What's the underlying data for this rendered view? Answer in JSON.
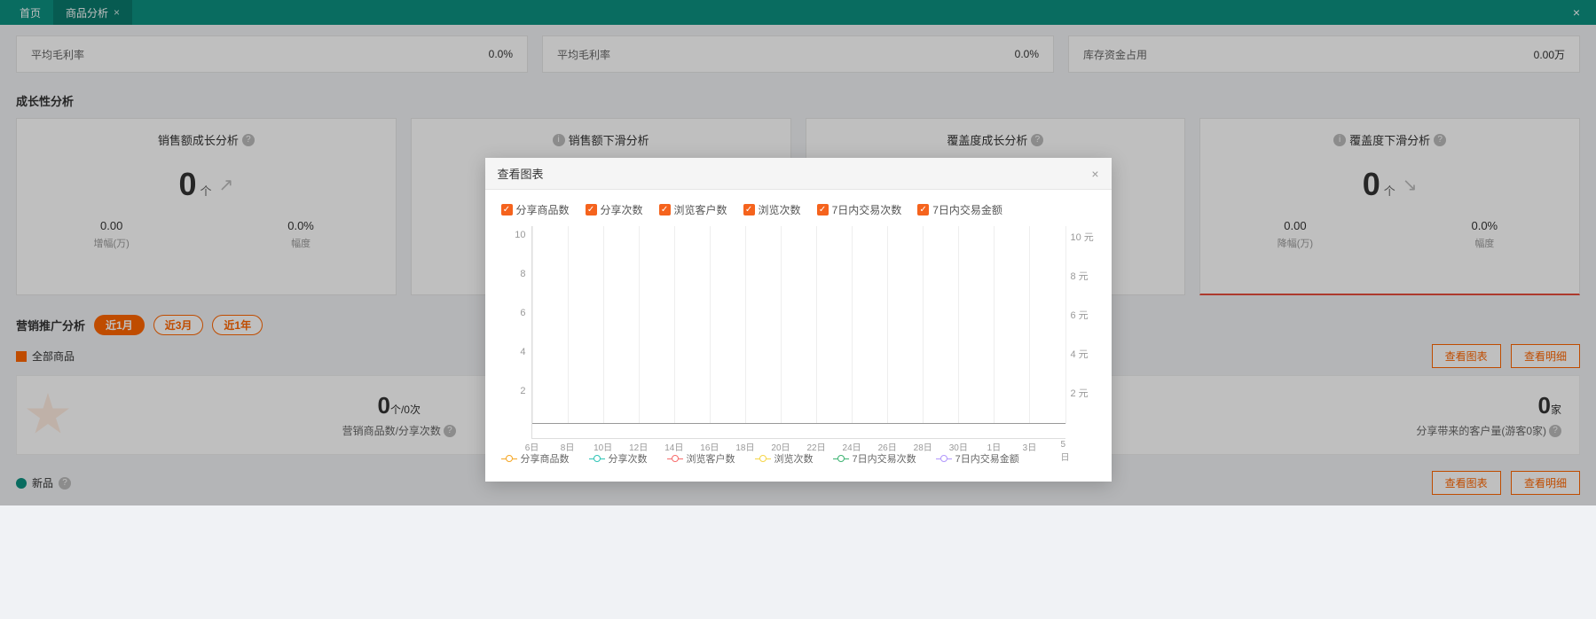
{
  "tabs": {
    "home": "首页",
    "active": "商品分析"
  },
  "top_metrics": [
    {
      "label": "平均毛利率",
      "value": "0.0%"
    },
    {
      "label": "平均毛利率",
      "value": "0.0%"
    },
    {
      "label": "库存资金占用",
      "value": "0.00万"
    }
  ],
  "growth": {
    "section": "成长性分析",
    "cards": [
      {
        "title": "销售额成长分析",
        "num": "0",
        "unit": "个",
        "trend": "up",
        "subs": [
          {
            "v": "0.00",
            "l": "增幅(万)"
          },
          {
            "v": "0.0%",
            "l": "幅度"
          }
        ]
      },
      {
        "title": "销售额下滑分析",
        "num": "",
        "unit": "",
        "trend": "",
        "subs": []
      },
      {
        "title": "覆盖度成长分析",
        "num": "",
        "unit": "",
        "trend": "",
        "subs": []
      },
      {
        "title": "覆盖度下滑分析",
        "num": "0",
        "unit": "个",
        "trend": "down",
        "subs": [
          {
            "v": "0.00",
            "l": "降幅(万)"
          },
          {
            "v": "0.0%",
            "l": "幅度"
          }
        ]
      }
    ]
  },
  "marketing": {
    "section": "营销推广分析",
    "pills": [
      "近1月",
      "近3月",
      "近1年"
    ],
    "active_pill": 0,
    "all_goods": "全部商品",
    "new_goods": "新品",
    "buttons": {
      "chart": "查看图表",
      "detail": "查看明细"
    },
    "left_card": {
      "big": "0",
      "unit": "个/0次",
      "label": "营销商品数/分享次数"
    },
    "right_card": {
      "big": "0",
      "unit": "家",
      "label": "分享带来的客户量(游客0家)"
    }
  },
  "modal": {
    "title": "查看图表",
    "series": [
      {
        "name": "分享商品数",
        "color": "#f5a623"
      },
      {
        "name": "分享次数",
        "color": "#2ec4b6"
      },
      {
        "name": "浏览客户数",
        "color": "#f76c6c"
      },
      {
        "name": "浏览次数",
        "color": "#f5d547"
      },
      {
        "name": "7日内交易次数",
        "color": "#3cb371"
      },
      {
        "name": "7日内交易金额",
        "color": "#b197fc"
      }
    ],
    "cb_color": "#f5631d",
    "y_left": [
      "10",
      "8",
      "6",
      "4",
      "2",
      ""
    ],
    "y_right": [
      "10 元",
      "8 元",
      "6 元",
      "4 元",
      "2 元",
      ""
    ],
    "x": [
      "6日",
      "8日",
      "10日",
      "12日",
      "14日",
      "16日",
      "18日",
      "20日",
      "22日",
      "24日",
      "26日",
      "28日",
      "30日",
      "1日",
      "3日",
      "5日"
    ]
  }
}
